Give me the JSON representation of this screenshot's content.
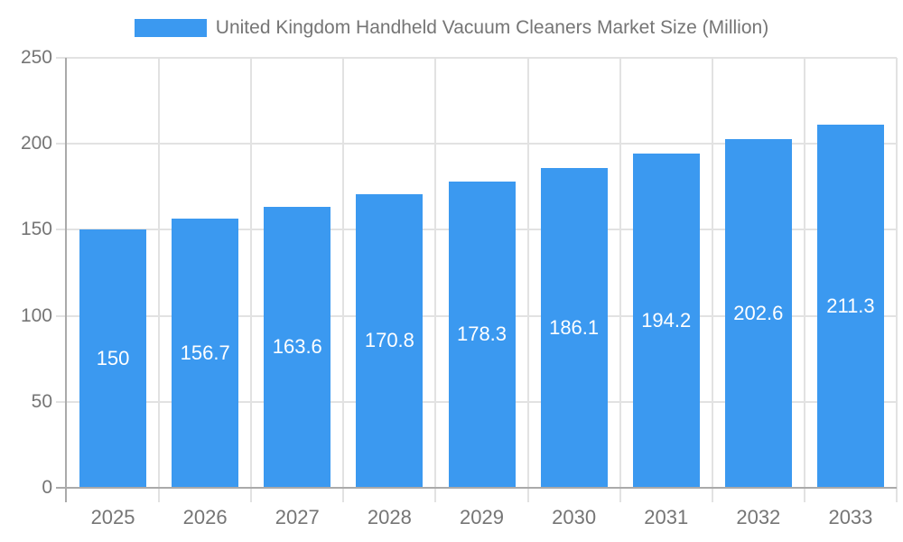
{
  "chart_data": {
    "type": "bar",
    "title": "United Kingdom Handheld Vacuum Cleaners Market Size (Million)",
    "categories": [
      "2025",
      "2026",
      "2027",
      "2028",
      "2029",
      "2030",
      "2031",
      "2032",
      "2033"
    ],
    "values": [
      150,
      156.7,
      163.6,
      170.8,
      178.3,
      186.1,
      194.2,
      202.6,
      211.3
    ],
    "value_labels": [
      "150",
      "156.7",
      "163.6",
      "170.8",
      "178.3",
      "186.1",
      "194.2",
      "202.6",
      "211.3"
    ],
    "xlabel": "",
    "ylabel": "",
    "ylim": [
      0,
      250
    ],
    "yticks": [
      0,
      50,
      100,
      150,
      200,
      250
    ],
    "ytick_labels": [
      "0",
      "50",
      "100",
      "150",
      "200",
      "250"
    ],
    "grid": true,
    "legend_position": "top",
    "value_labels_inside_bars": true,
    "colors": {
      "bar": "#3B99F0",
      "value_label": "#ffffff",
      "axis_line": "#aaaaaa",
      "gridline": "#e2e2e2",
      "axis_label": "#757575",
      "title": "#757575",
      "background": "#ffffff"
    }
  }
}
